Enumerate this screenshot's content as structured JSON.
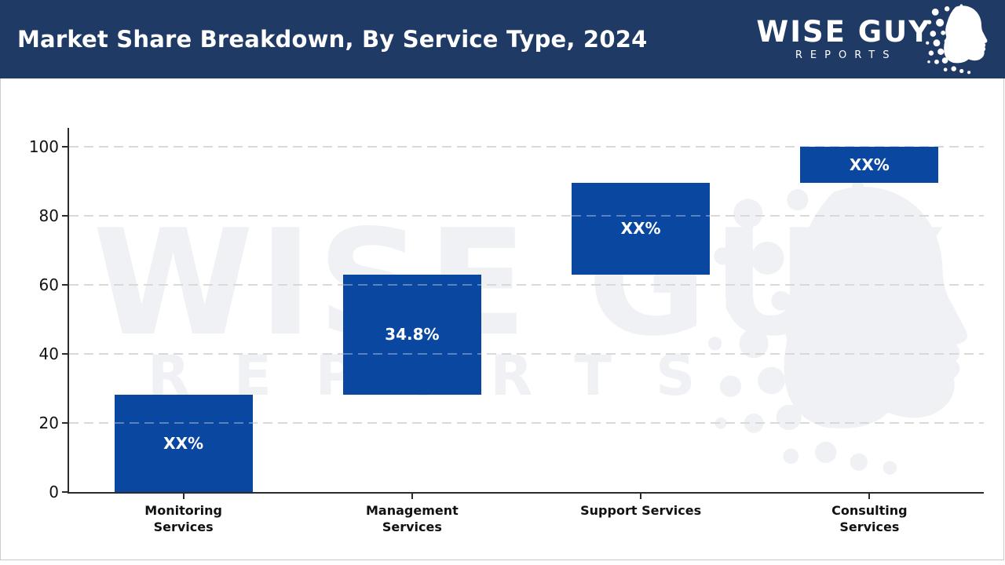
{
  "header": {
    "title": "Market Share Breakdown, By Service Type, 2024",
    "logo_line1": "WISE GUY",
    "logo_line2": "REPORTS"
  },
  "watermark": {
    "line1": "WISE GUY",
    "line2": "REPORTS"
  },
  "colors": {
    "header_bg": "#203a66",
    "bar": "#0a47a0",
    "bar_label": "#ffffff",
    "gridline": "#d9d9d9",
    "axis": "#2b2b2b",
    "watermark": "#f0f1f4"
  },
  "chart_data": {
    "type": "bar",
    "subtype": "floating-waterfall",
    "title": "Market Share Breakdown, By Service Type, 2024",
    "categories": [
      "Monitoring Services",
      "Management Services",
      "Support Services",
      "Consulting Services"
    ],
    "category_lines": [
      [
        "Monitoring",
        "Services"
      ],
      [
        "Management",
        "Services"
      ],
      [
        "Support Services"
      ],
      [
        "Consulting",
        "Services"
      ]
    ],
    "segments": [
      {
        "category": "Monitoring Services",
        "start": 0,
        "end": 28.2,
        "label": "XX%"
      },
      {
        "category": "Management Services",
        "start": 28.2,
        "end": 63,
        "label": "34.8%"
      },
      {
        "category": "Support Services",
        "start": 63,
        "end": 89.5,
        "label": "XX%"
      },
      {
        "category": "Consulting Services",
        "start": 89.5,
        "end": 100,
        "label": "XX%"
      }
    ],
    "ylim": [
      0,
      100
    ],
    "yticks": [
      0,
      20,
      40,
      60,
      80,
      100
    ],
    "xlabel": "",
    "ylabel": "",
    "grid": {
      "horizontal": true,
      "style": "dashed"
    },
    "legend": "none"
  }
}
